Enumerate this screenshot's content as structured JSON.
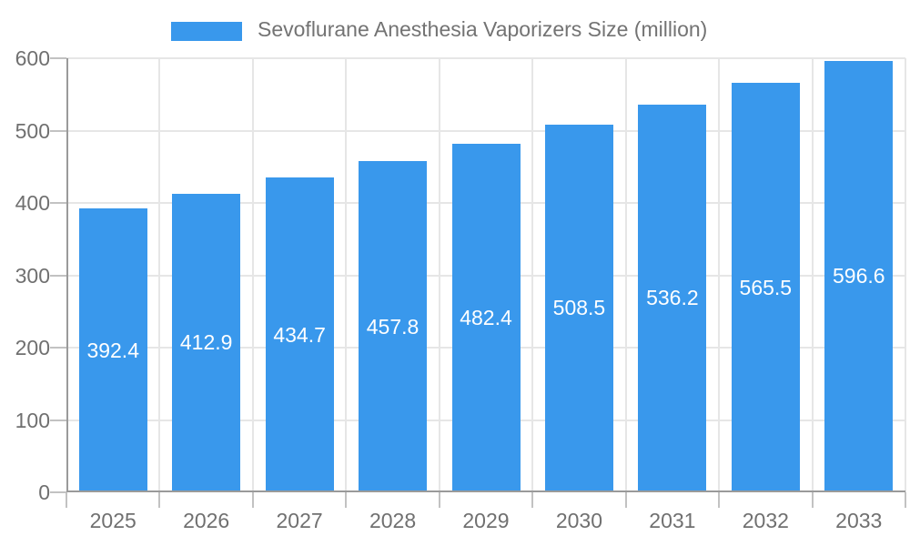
{
  "chart_data": {
    "type": "bar",
    "title": "",
    "legend": "Sevoflurane Anesthesia Vaporizers Size (million)",
    "legend_position": "top",
    "categories": [
      "2025",
      "2026",
      "2027",
      "2028",
      "2029",
      "2030",
      "2031",
      "2032",
      "2033"
    ],
    "values": [
      392.4,
      412.9,
      434.7,
      457.8,
      482.4,
      508.5,
      536.2,
      565.5,
      596.6
    ],
    "value_labels": [
      "392.4",
      "412.9",
      "434.7",
      "457.8",
      "482.4",
      "508.5",
      "536.2",
      "565.5",
      "596.6"
    ],
    "xlabel": "",
    "ylabel": "",
    "ylim": [
      0,
      600
    ],
    "yticks": [
      0,
      100,
      200,
      300,
      400,
      500,
      600
    ],
    "grid": true,
    "colors": {
      "bar": "#3998ec",
      "value_label": "#ffffff",
      "axis_line": "#9a9a9a",
      "tick_mark": "#c2c2c2",
      "gridline": "#e6e6e6",
      "tick_text": "#707070",
      "legend_text": "#737373"
    }
  }
}
